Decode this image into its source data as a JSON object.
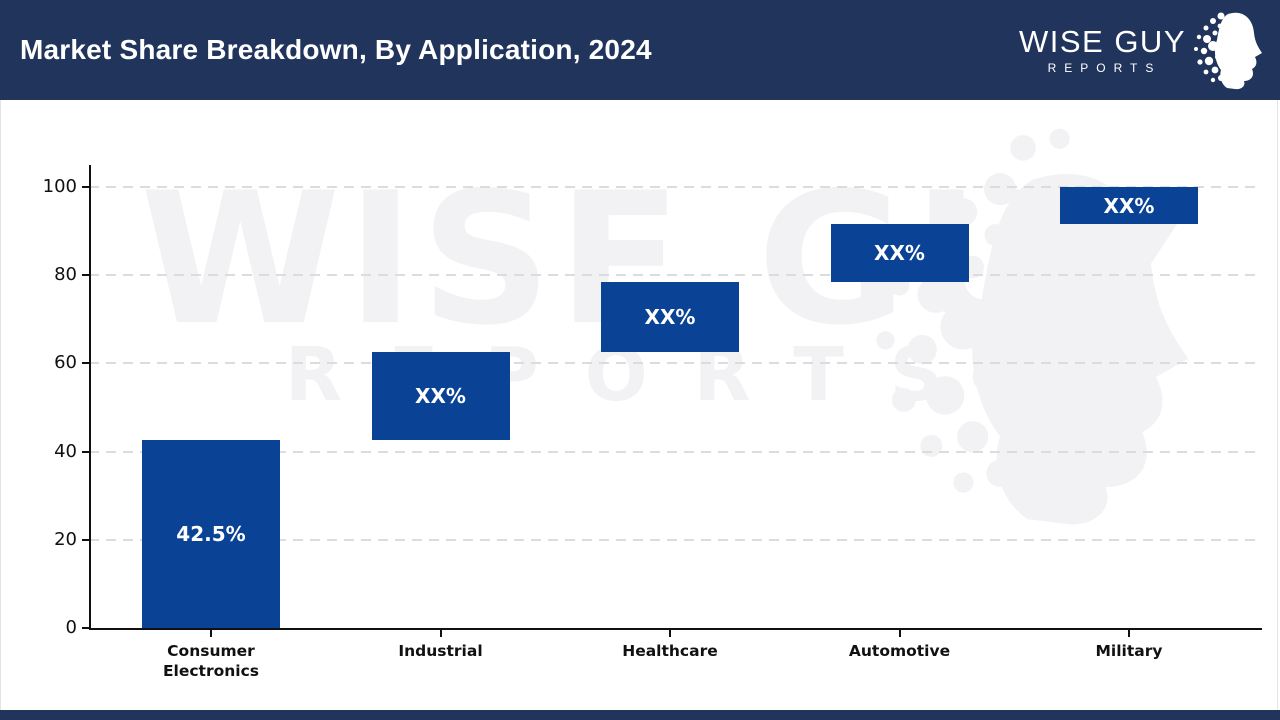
{
  "header": {
    "title": "Market Share Breakdown, By Application, 2024",
    "bg_color": "#20345c",
    "logo": {
      "name": "WISE GUY",
      "subtitle": "REPORTS"
    }
  },
  "watermark": {
    "line1": "WISE GUY",
    "line2": "REPORTS"
  },
  "chart_data": {
    "type": "bar",
    "subtype": "waterfall-stacked-percentage",
    "title": "Market Share Breakdown, By Application, 2024",
    "categories": [
      "Consumer Electronics",
      "Industrial",
      "Healthcare",
      "Automotive",
      "Military"
    ],
    "segments": [
      {
        "category": "Consumer Electronics",
        "label": "42.5%",
        "value": 42.5,
        "start": 0,
        "end": 42.5
      },
      {
        "category": "Industrial",
        "label": "XX%",
        "value": 20,
        "start": 42.5,
        "end": 62.5
      },
      {
        "category": "Healthcare",
        "label": "XX%",
        "value": 16,
        "start": 62.5,
        "end": 78.5
      },
      {
        "category": "Automotive",
        "label": "XX%",
        "value": 13,
        "start": 78.5,
        "end": 91.5
      },
      {
        "category": "Military",
        "label": "XX%",
        "value": 8.5,
        "start": 91.5,
        "end": 100
      }
    ],
    "y_ticks": [
      0,
      20,
      40,
      60,
      80,
      100
    ],
    "ylim": [
      0,
      105
    ],
    "xlabel": "",
    "ylabel": "",
    "bar_color": "#0a4296",
    "bar_label_color": "#ffffff",
    "axis_color": "#111111",
    "grid": {
      "axis": "y",
      "style": "dashed",
      "color": "#dcdcdc"
    },
    "legend": "none"
  }
}
